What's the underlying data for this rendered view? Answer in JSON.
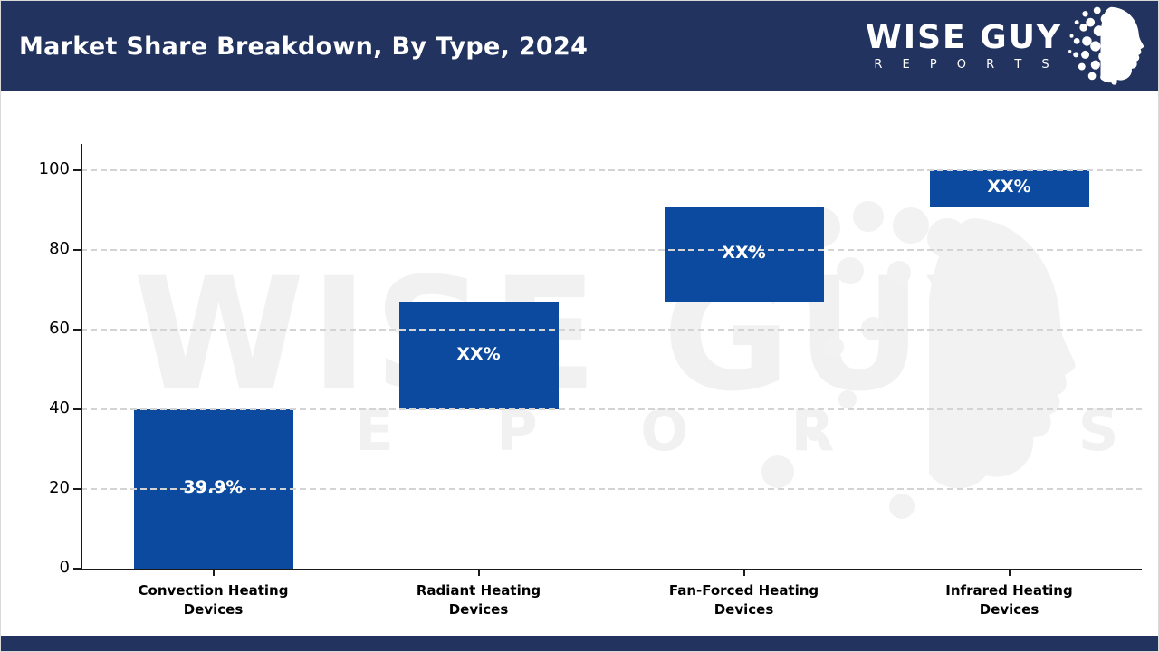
{
  "page": {
    "bg_color": "#ffffff",
    "accent_navy": "#21335e",
    "frame_border_color": "#d9d9d9"
  },
  "header": {
    "title": "Market Share Breakdown, By Type, 2024",
    "logo_line1": "WISE GUY",
    "logo_line2": "R E P O R T S"
  },
  "watermark": {
    "line1": "WISE GUY",
    "line2": "R E P O R T S"
  },
  "chart_data": {
    "type": "bar",
    "variant": "waterfall-segmented-market-share",
    "title": "Market Share Breakdown, By Type, 2024",
    "xlabel": "",
    "ylabel": "",
    "ylim": [
      0,
      100
    ],
    "yticks": [
      0,
      20,
      40,
      60,
      80,
      100
    ],
    "grid": "horizontal-dashed-over-bars",
    "gridline_color": "#d4d4d4",
    "bar_color": "#0b4a9e",
    "bar_label_color": "#ffffff",
    "legend": "none",
    "categories": [
      "Convection Heating Devices",
      "Radiant Heating Devices",
      "Fan-Forced Heating Devices",
      "Infrared Heating Devices"
    ],
    "bars": [
      {
        "category_line1": "Convection Heating",
        "category_line2": "Devices",
        "start": 0,
        "end": 39.9,
        "value": 39.9,
        "label": "39.9%"
      },
      {
        "category_line1": "Radiant Heating",
        "category_line2": "Devices",
        "start": 39.9,
        "end": 67.1,
        "value": 27.2,
        "label": "XX%"
      },
      {
        "category_line1": "Fan-Forced Heating",
        "category_line2": "Devices",
        "start": 67.1,
        "end": 90.7,
        "value": 23.6,
        "label": "XX%"
      },
      {
        "category_line1": "Infrared Heating",
        "category_line2": "Devices",
        "start": 90.7,
        "end": 100,
        "value": 9.3,
        "label": "XX%"
      }
    ]
  }
}
